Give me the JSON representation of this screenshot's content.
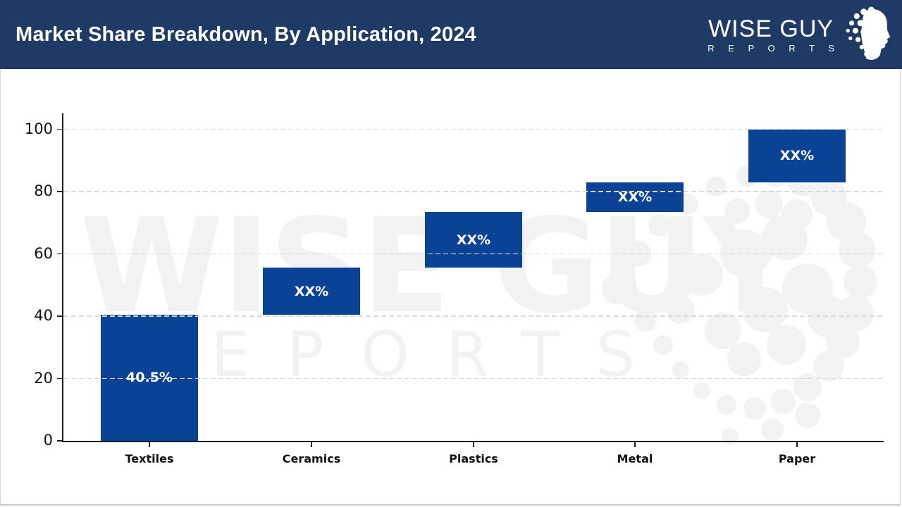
{
  "header": {
    "title": "Market Share Breakdown, By Application, 2024",
    "bg_color": "#1f3a64",
    "logo": {
      "line1": "WISE GUY",
      "line2": "R E P O R T S"
    }
  },
  "watermark": {
    "line1": "WISE GUY",
    "line2": "REPORTS"
  },
  "chart_data": {
    "type": "bar",
    "subtype": "waterfall",
    "title": "Market Share Breakdown, By Application, 2024",
    "xlabel": "",
    "ylabel": "",
    "categories": [
      "Textiles",
      "Ceramics",
      "Plastics",
      "Metal",
      "Paper"
    ],
    "segments": [
      {
        "category": "Textiles",
        "start": 0,
        "end": 40.5,
        "label": "40.5%"
      },
      {
        "category": "Ceramics",
        "start": 40.5,
        "end": 55.5,
        "label": "XX%"
      },
      {
        "category": "Plastics",
        "start": 55.5,
        "end": 73.5,
        "label": "XX%"
      },
      {
        "category": "Metal",
        "start": 73.5,
        "end": 83,
        "label": "XX%"
      },
      {
        "category": "Paper",
        "start": 83,
        "end": 100,
        "label": "XX%"
      }
    ],
    "yticks": [
      0,
      20,
      40,
      60,
      80,
      100
    ],
    "ylim": [
      0,
      105
    ],
    "grid": "dashed-horizontal-over-bars",
    "legend": "none",
    "bar_color": "#0a4296",
    "label_color": "#ffffff",
    "axis_color": "#1c1c1c",
    "grid_color": "#d8d8d8"
  }
}
